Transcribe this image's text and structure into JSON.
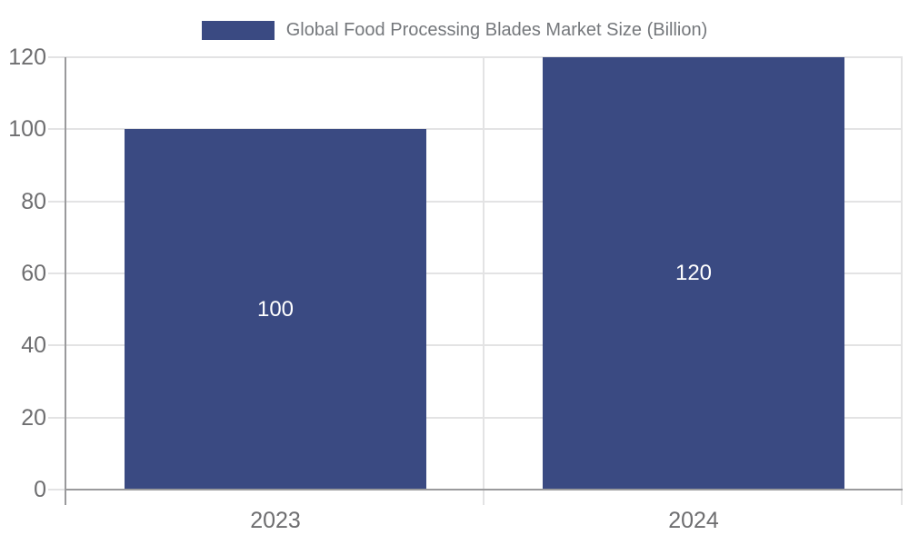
{
  "chart_data": {
    "type": "bar",
    "title": "Global Food Processing Blades Market Size (Billion)",
    "categories": [
      "2023",
      "2024"
    ],
    "values": [
      100,
      120
    ],
    "value_labels": [
      "100",
      "120"
    ],
    "legend": [
      "Global Food Processing Blades Market Size (Billion)"
    ],
    "legend_position": "top-center",
    "xlabel": "",
    "ylabel": "",
    "ylim": [
      0,
      120
    ],
    "yticks": [
      0,
      20,
      40,
      60,
      80,
      100,
      120
    ],
    "grid": true,
    "colors": {
      "bar": "#3A4A82",
      "grid": "#e3e3e4",
      "axis": "#9a9a9c",
      "tick_label": "#6e6e70",
      "legend_label": "#75787c",
      "value_label": "#ffffff",
      "background": "#ffffff"
    }
  },
  "legend": {
    "label": "Global Food Processing Blades Market Size (Billion)"
  }
}
